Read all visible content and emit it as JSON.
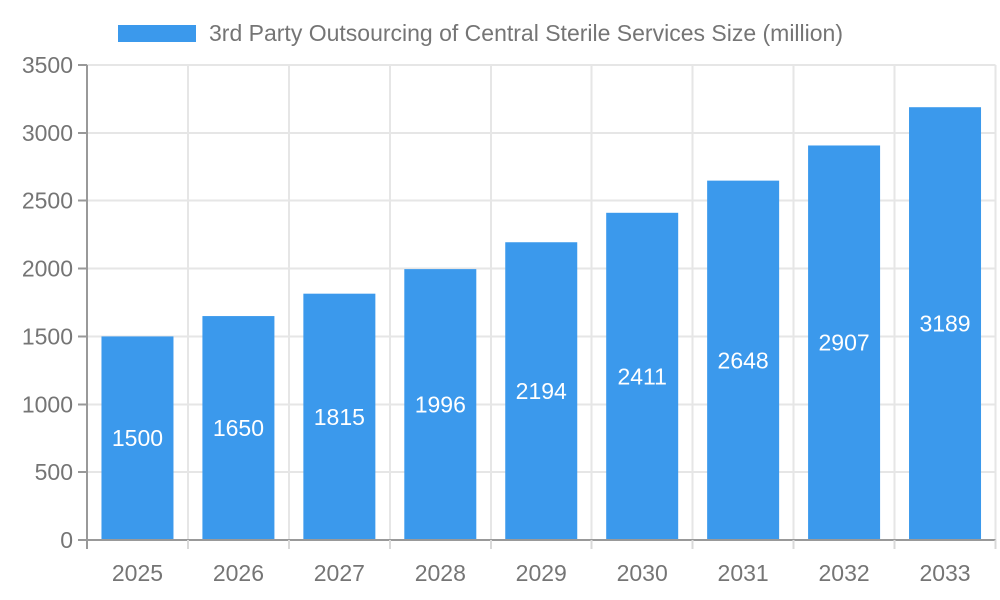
{
  "chart_data": {
    "type": "bar",
    "title": "3rd Party Outsourcing of Central Sterile Services Size (million)",
    "categories": [
      "2025",
      "2026",
      "2027",
      "2028",
      "2029",
      "2030",
      "2031",
      "2032",
      "2033"
    ],
    "values": [
      1500,
      1650,
      1815,
      1996,
      2194,
      2411,
      2648,
      2907,
      3189
    ],
    "bar_value_labels": [
      "1500",
      "1650",
      "1815",
      "1996",
      "2194",
      "2411",
      "2648",
      "2907",
      "3189"
    ],
    "xlabel": "",
    "ylabel": "",
    "ylim": [
      0,
      3500
    ],
    "ytick_step": 500,
    "ytick_labels": [
      "0",
      "500",
      "1000",
      "1500",
      "2000",
      "2500",
      "3000",
      "3500"
    ],
    "grid": true,
    "legend_position": "top-left",
    "bar_labels_inside": true
  },
  "colors": {
    "bar": "#3b99ec",
    "bar_label": "#ffffff",
    "axis_text": "#757575",
    "axis_line": "#999999",
    "gridline": "#e6e6e6",
    "x_tick": "#d9d9d9",
    "background": "#ffffff"
  }
}
